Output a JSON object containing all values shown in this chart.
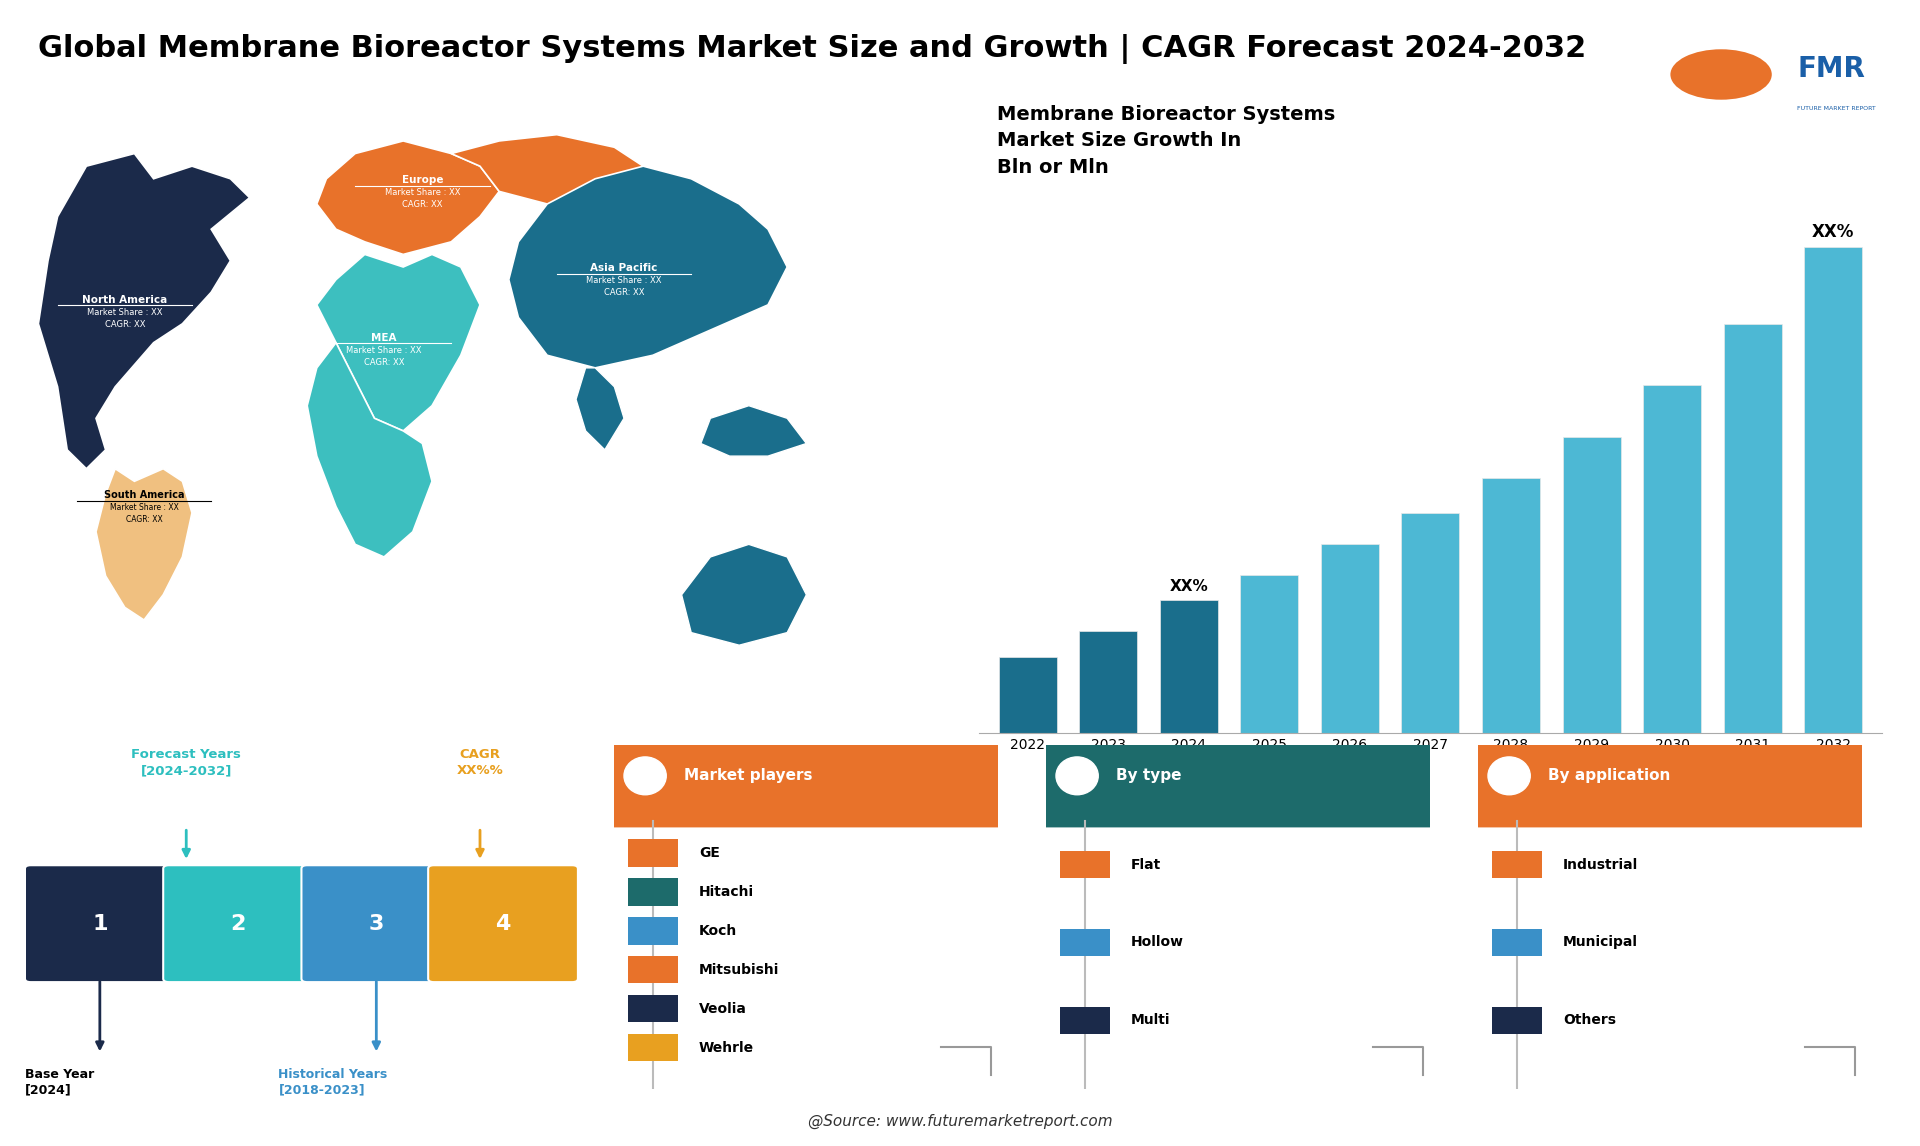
{
  "title": "Global Membrane Bioreactor Systems Market Size and Growth | CAGR Forecast 2024-2032",
  "title_fontsize": 22,
  "background_color": "#ffffff",
  "bar_years": [
    "2022",
    "2023",
    "2024",
    "2025",
    "2026",
    "2027",
    "2028",
    "2029",
    "2030",
    "2031",
    "2032"
  ],
  "bar_values": [
    1.5,
    2.0,
    2.6,
    3.1,
    3.7,
    4.3,
    5.0,
    5.8,
    6.8,
    8.0,
    9.5
  ],
  "bar_chart_title": "Membrane Bioreactor Systems\nMarket Size Growth In\nBln or Mln",
  "xx_label_2024": "XX%",
  "xx_label_2032": "XX%",
  "bar_colors": [
    "#1a6e8c",
    "#1a6e8c",
    "#1a6e8c",
    "#4db8d4",
    "#4db8d4",
    "#4db8d4",
    "#4db8d4",
    "#4db8d4",
    "#4db8d4",
    "#4db8d4",
    "#4db8d4"
  ],
  "regions": [
    {
      "name": "North America",
      "color": "#1b2a4a",
      "text_color": "white",
      "label1": "North America",
      "label2": "Market Share : XX",
      "label3": "CAGR: XX"
    },
    {
      "name": "Europe",
      "color": "#e8722a",
      "text_color": "white",
      "label1": "Europe",
      "label2": "Market Share : XX",
      "label3": "CAGR: XX"
    },
    {
      "name": "Asia Pacific",
      "color": "#1a6e8c",
      "text_color": "white",
      "label1": "Asia Pacific",
      "label2": "Market Share : XX",
      "label3": "CAGR: XX"
    },
    {
      "name": "MEA",
      "color": "#3dbfbf",
      "text_color": "white",
      "label1": "MEA",
      "label2": "Market Share : XX",
      "label3": "CAGR: XX"
    },
    {
      "name": "South America",
      "color": "#f0c080",
      "text_color": "black",
      "label1": "South America",
      "label2": "Market Share : XX",
      "label3": "CAGR: XX"
    }
  ],
  "timeline_colors": [
    "#1b2a4a",
    "#2dbfbf",
    "#3a90c8",
    "#e8a020"
  ],
  "timeline_labels": [
    "1",
    "2",
    "3",
    "4"
  ],
  "forecast_color": "#2dbfbf",
  "cagr_color": "#e8a020",
  "historical_color": "#3a90c8",
  "market_players_title": "Market players",
  "market_players": [
    "GE",
    "Hitachi",
    "Koch",
    "Mitsubishi",
    "Veolia",
    "Wehrle"
  ],
  "by_type_title": "By type",
  "by_type": [
    "Flat",
    "Hollow",
    "Multi"
  ],
  "by_app_title": "By application",
  "by_app": [
    "Industrial",
    "Municipal",
    "Others"
  ],
  "source_text": "@Source: www.futuremarketreport.com",
  "orange_color": "#e8722a",
  "teal_color": "#1d6b6b",
  "bullet_colors_players": [
    "#e8722a",
    "#1d6b6b",
    "#3a90c8",
    "#e8722a",
    "#1b2a4a",
    "#e8a020"
  ],
  "bullet_colors_type": [
    "#e8722a",
    "#3a90c8",
    "#1b2a4a"
  ],
  "bullet_colors_app": [
    "#e8722a",
    "#3a90c8",
    "#1b2a4a"
  ],
  "fmr_color": "#1a5fa8"
}
